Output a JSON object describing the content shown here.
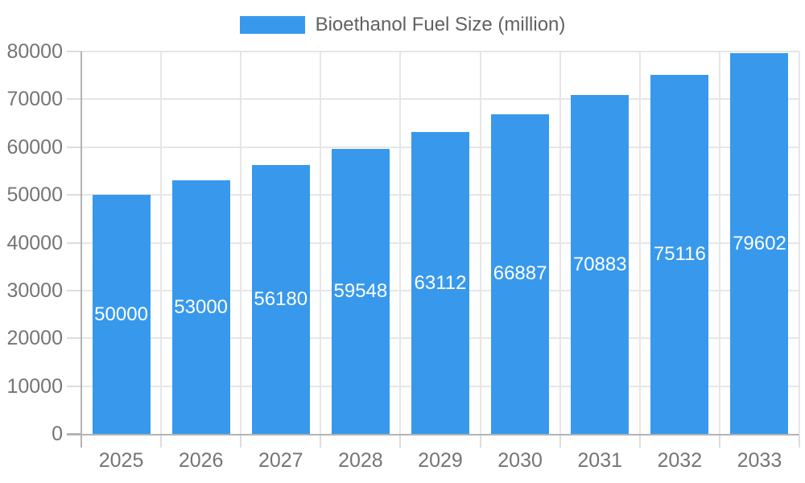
{
  "legend": {
    "label": "Bioethanol Fuel Size (million)"
  },
  "chart_data": {
    "type": "bar",
    "title": "Bioethanol Fuel Size (million)",
    "series_name": "Bioethanol Fuel Size (million)",
    "categories": [
      "2025",
      "2026",
      "2027",
      "2028",
      "2029",
      "2030",
      "2031",
      "2032",
      "2033"
    ],
    "values": [
      50000,
      53000,
      56180,
      59548,
      63112,
      66887,
      70883,
      75116,
      79602
    ],
    "xlabel": "",
    "ylabel": "",
    "ylim": [
      0,
      80000
    ],
    "ytick_step": 10000,
    "yticks": [
      0,
      10000,
      20000,
      30000,
      40000,
      50000,
      60000,
      70000,
      80000
    ],
    "grid": true,
    "legend_position": "top",
    "bar_labels_inside": true,
    "colors": {
      "bar": "#3899EC",
      "bar_label_text": "#FFFFFF",
      "gridline": "#E6E6E6",
      "tick": "#DDDDDD",
      "axis_line": "#B3B3B3",
      "axis_text": "#757575",
      "legend_text": "#616161",
      "background": "#FFFFFF"
    }
  }
}
